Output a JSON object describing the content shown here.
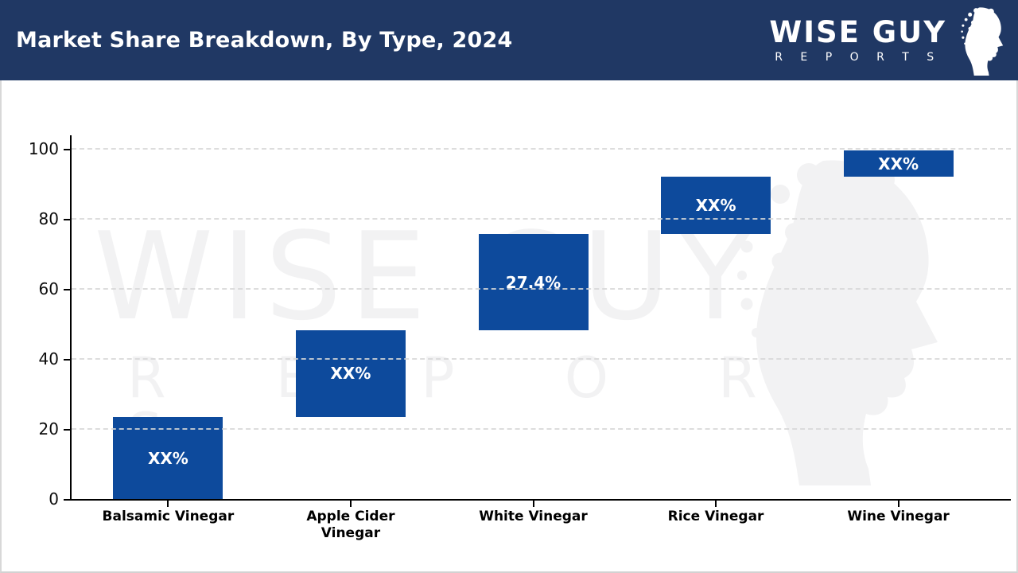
{
  "header": {
    "title": "Market Share Breakdown, By Type, 2024",
    "bg_color": "#203864",
    "logo": {
      "wordmark": "WISE GUY",
      "subtext": "R E P O R T S"
    }
  },
  "watermark": {
    "wordmark": "WISE GUY",
    "subtext": "R E P O R T S"
  },
  "chart_data": {
    "type": "bar",
    "subtype": "waterfall",
    "title": "Market Share Breakdown, By Type, 2024",
    "categories": [
      "Balsamic Vinegar",
      "Apple Cider\nVinegar",
      "White Vinegar",
      "Rice Vinegar",
      "Wine Vinegar"
    ],
    "segments": [
      {
        "category": "Balsamic Vinegar",
        "start": 0,
        "end": 23.4,
        "value": 23.4,
        "label": "XX%"
      },
      {
        "category": "Apple Cider Vinegar",
        "start": 23.4,
        "end": 48.2,
        "value": 24.8,
        "label": "XX%"
      },
      {
        "category": "White Vinegar",
        "start": 48.2,
        "end": 75.6,
        "value": 27.4,
        "label": "27.4%"
      },
      {
        "category": "Rice Vinegar",
        "start": 75.6,
        "end": 92.0,
        "value": 16.4,
        "label": "XX%"
      },
      {
        "category": "Wine Vinegar",
        "start": 92.0,
        "end": 99.5,
        "value": 7.5,
        "label": "XX%"
      }
    ],
    "ylim": [
      0,
      100
    ],
    "yticks": [
      0,
      20,
      40,
      60,
      80,
      100
    ],
    "xlabel": "",
    "ylabel": "",
    "grid": "horizontal-dashed",
    "legend": "none",
    "bar_color": "#0d4a9c",
    "bar_label_color": "#ffffff",
    "axis_color": "#000000",
    "grid_color": "#d9d9d9",
    "watermark_color": "#f2f2f3"
  }
}
